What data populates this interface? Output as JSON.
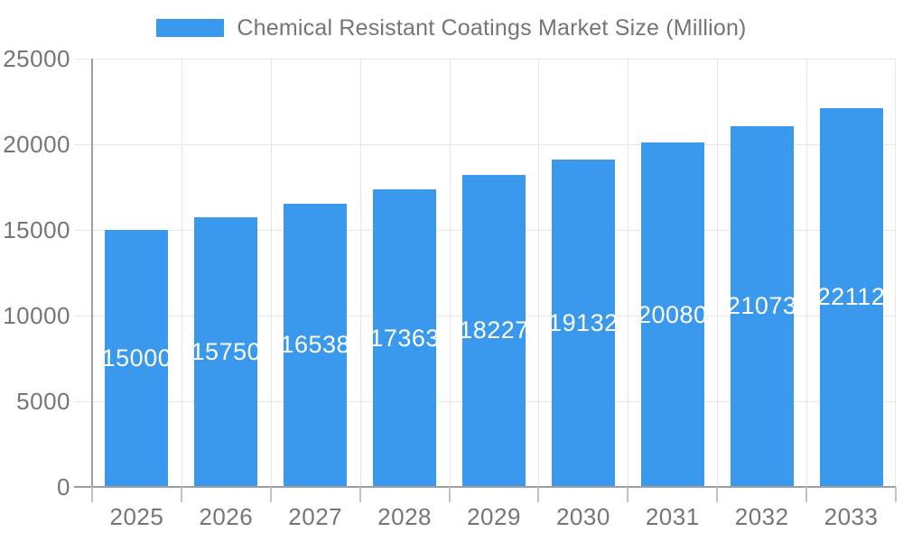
{
  "chart_data": {
    "type": "bar",
    "title": "Chemical Resistant Coatings Market Size (Million)",
    "legend": {
      "label": "Chemical Resistant Coatings Market Size (Million)",
      "position": "top-center"
    },
    "categories": [
      "2025",
      "2026",
      "2027",
      "2028",
      "2029",
      "2030",
      "2031",
      "2032",
      "2033"
    ],
    "values": [
      15000,
      15750,
      16538,
      17363,
      18227,
      19132,
      20080,
      21073,
      22112
    ],
    "xlabel": "",
    "ylabel": "",
    "ylim": [
      0,
      25000
    ],
    "yticks": [
      0,
      5000,
      10000,
      15000,
      20000,
      25000
    ],
    "grid": "on",
    "value_labels": "inside-center",
    "colors": {
      "bar": "#3A99EC",
      "value_label": "#FFFFFF",
      "axis_text": "#757575",
      "axis_line": "#9E9E9E",
      "grid_line": "#E7E7E7",
      "tick_line": "#C2C2C2",
      "background": "#FFFFFF"
    }
  }
}
